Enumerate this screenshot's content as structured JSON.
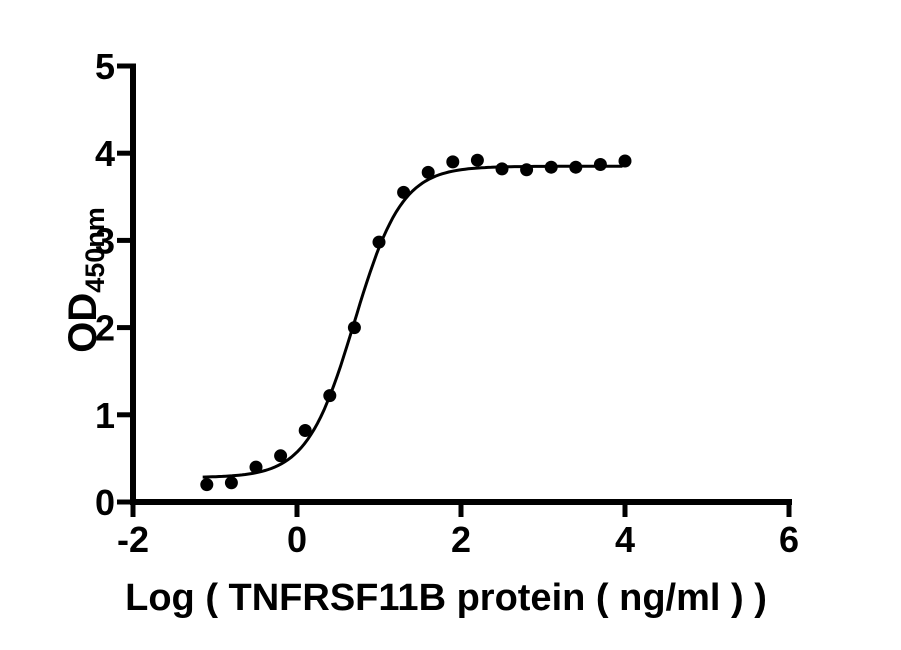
{
  "page": {
    "background_color": "#ffffff",
    "foreground_color": "#000000"
  },
  "chart_data": {
    "type": "scatter",
    "title": "",
    "grid": false,
    "legend": "none",
    "point_color": "#000000",
    "curve_color": "#000000",
    "axis_color": "#000000",
    "x_axis": {
      "label": "Log ( TNFRSF11B protein ( ng/ml )   )",
      "min": -2,
      "max": 6,
      "ticks": [
        -2,
        0,
        2,
        4,
        6
      ]
    },
    "y_axis": {
      "label_main": "OD",
      "label_sub": "450nm",
      "min": 0,
      "max": 5,
      "ticks": [
        0,
        1,
        2,
        3,
        4,
        5
      ]
    },
    "series": [
      {
        "name": "measured-od-points",
        "kind": "scatter",
        "x": [
          -1.1,
          -0.8,
          -0.5,
          -0.2,
          0.1,
          0.4,
          0.7,
          1.0,
          1.3,
          1.6,
          1.9,
          2.2,
          2.5,
          2.8,
          3.1,
          3.4,
          3.7,
          4.0
        ],
        "y": [
          0.2,
          0.22,
          0.4,
          0.53,
          0.82,
          1.22,
          2.0,
          2.98,
          3.55,
          3.78,
          3.9,
          3.92,
          3.82,
          3.81,
          3.84,
          3.84,
          3.87,
          3.91
        ]
      },
      {
        "name": "four-parameter-logistic-fit",
        "kind": "curve",
        "model": "4pl",
        "params": {
          "bottom": 0.28,
          "top": 3.85,
          "logEC50": 0.7,
          "hillslope": 1.5
        },
        "x_range": [
          -1.15,
          4.0
        ]
      }
    ]
  }
}
